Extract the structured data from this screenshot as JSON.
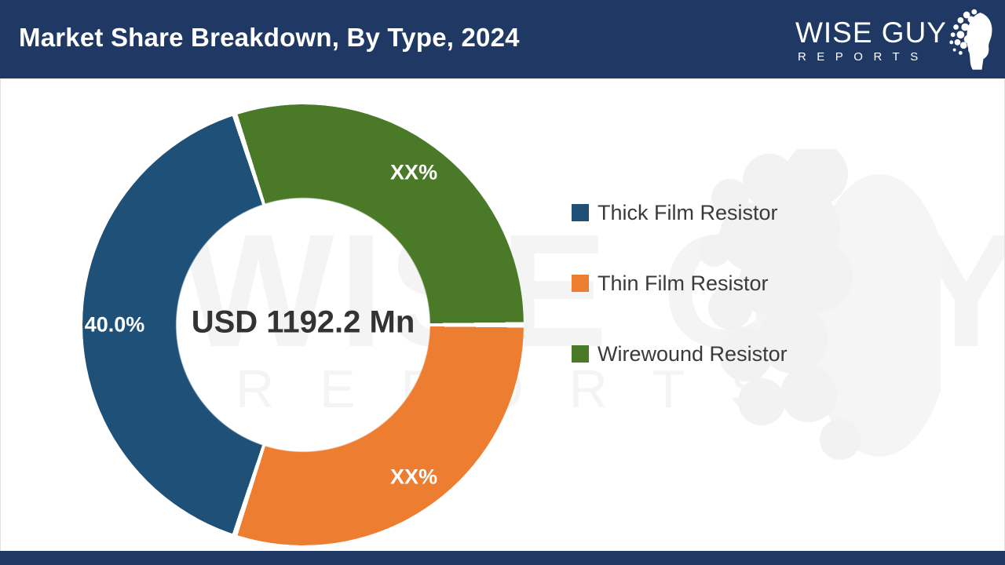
{
  "header": {
    "title": "Market Share Breakdown, By Type, 2024",
    "bg_color": "#1F3864",
    "logo": {
      "name": "WISE GUY",
      "sub": "REPORTS"
    }
  },
  "watermark": {
    "line1": "WISE GUY",
    "line2": "REPORTS"
  },
  "chart_data": {
    "type": "pie",
    "donut": true,
    "title": "Market Share Breakdown, By Type, 2024",
    "center_label": "USD 1192.2 Mn",
    "start_angle_deg": -18,
    "legend_position": "right",
    "slices": [
      {
        "name": "Wirewound Resistor",
        "label_displayed": "XX%",
        "value_pct_est": 30,
        "color": "#4a7a28"
      },
      {
        "name": "Thin Film Resistor",
        "label_displayed": "XX%",
        "value_pct_est": 30,
        "color": "#ED7D31"
      },
      {
        "name": "Thick Film Resistor",
        "label_displayed": "40.0%",
        "value_pct_est": 40,
        "color": "#1f5077"
      }
    ]
  },
  "legend": {
    "items": [
      {
        "label": "Thick Film Resistor",
        "color": "#1f5077"
      },
      {
        "label": "Thin Film Resistor",
        "color": "#ED7D31"
      },
      {
        "label": "Wirewound Resistor",
        "color": "#4a7a28"
      }
    ]
  },
  "colors": {
    "header_bg": "#1F3864",
    "footer_bg": "#1F3864",
    "center_text": "#333333",
    "legend_text": "#3a3a3a",
    "watermark": "#f4f4f4",
    "separator": "#ffffff"
  }
}
